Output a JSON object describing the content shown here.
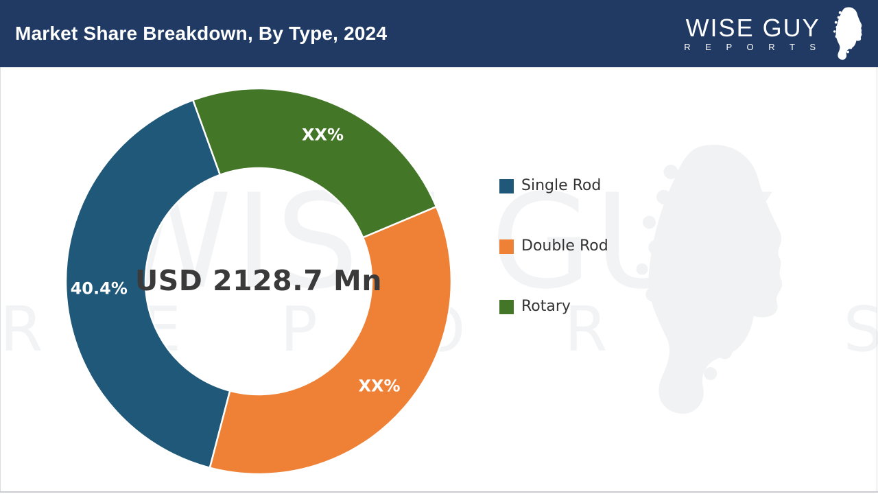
{
  "header": {
    "title": "Market Share Breakdown, By Type, 2024",
    "logo": {
      "line1": "WISE GUY",
      "line2": "R E P O R T S"
    }
  },
  "watermark": {
    "line1": "WISE GUY",
    "line2": "R E P O R T S"
  },
  "chart_data": {
    "type": "pie",
    "subtype": "donut",
    "title": "Market Share Breakdown, By Type, 2024",
    "center_label": "USD 2128.7 Mn",
    "start_angle_deg": 109.9,
    "direction": "counterclockwise",
    "inner_radius_ratio": 0.59,
    "legend_position": "right",
    "segments": [
      {
        "label": "Single Rod",
        "display_pct": "40.4%",
        "value_pct": 40.4,
        "color": "#1F5878"
      },
      {
        "label": "Double Rod",
        "display_pct": "XX%",
        "value_pct": 35.4,
        "color": "#EE8135"
      },
      {
        "label": "Rotary",
        "display_pct": "XX%",
        "value_pct": 24.2,
        "color": "#447628"
      }
    ]
  },
  "colors": {
    "header_bg": "#203A64",
    "center_text": "#3A3A3A",
    "legend_text": "#333333",
    "watermark": "#F2F3F5",
    "segment_gap": "#FFFFFF"
  }
}
